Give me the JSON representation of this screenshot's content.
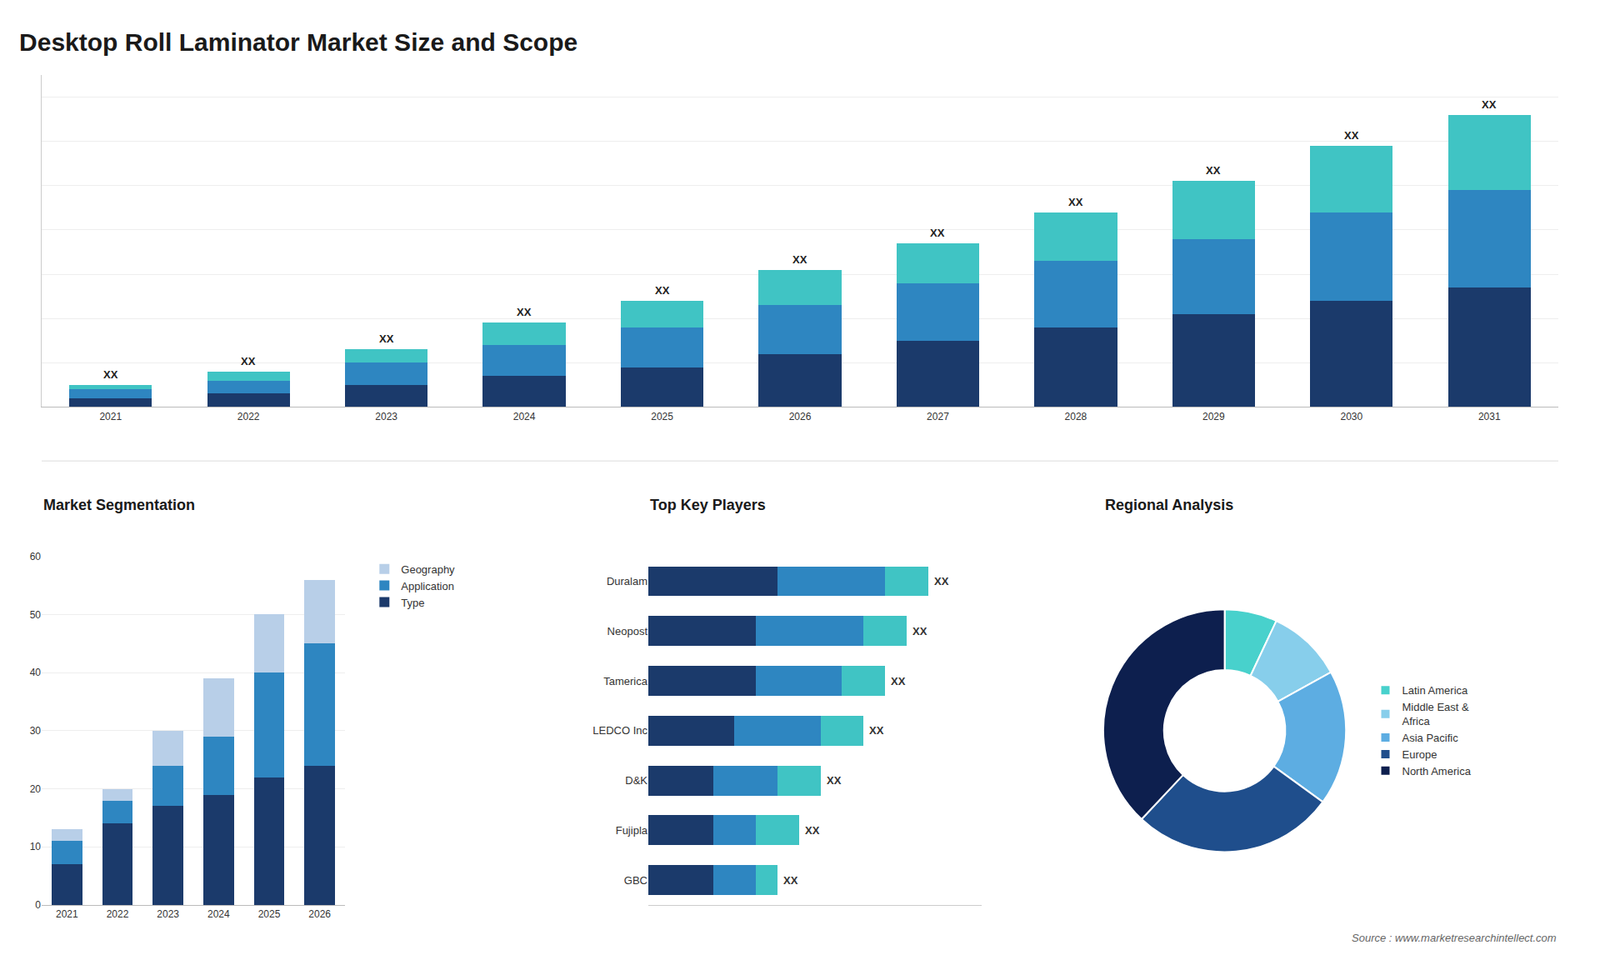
{
  "chart_data": [
    {
      "type": "bar",
      "title": "Desktop Roll Laminator Market Size and Scope",
      "stacked": true,
      "categories": [
        "2021",
        "2022",
        "2023",
        "2024",
        "2025",
        "2026",
        "2027",
        "2028",
        "2029",
        "2030",
        "2031"
      ],
      "series": [
        {
          "color": "#1b3a6b",
          "values": [
            2,
            3,
            5,
            7,
            9,
            12,
            15,
            18,
            21,
            24,
            27
          ]
        },
        {
          "color": "#2e86c1",
          "values": [
            2,
            3,
            5,
            7,
            9,
            11,
            13,
            15,
            17,
            20,
            22
          ]
        },
        {
          "color": "#40c4c4",
          "values": [
            1,
            2,
            3,
            5,
            6,
            8,
            9,
            11,
            13,
            15,
            17
          ]
        }
      ],
      "ylim": [
        0,
        75
      ],
      "yticks": [
        0,
        10,
        20,
        30,
        40,
        50,
        60,
        70
      ],
      "grid": true,
      "tick_labels": "x",
      "annotations": [
        {
          "x": 0,
          "text": "XX"
        },
        {
          "x": 1,
          "text": "XX"
        },
        {
          "x": 2,
          "text": "XX"
        },
        {
          "x": 3,
          "text": "XX"
        },
        {
          "x": 4,
          "text": "XX"
        },
        {
          "x": 5,
          "text": "XX"
        },
        {
          "x": 6,
          "text": "XX"
        },
        {
          "x": 7,
          "text": "XX"
        },
        {
          "x": 8,
          "text": "XX"
        },
        {
          "x": 9,
          "text": "XX"
        },
        {
          "x": 10,
          "text": "XX"
        }
      ]
    },
    {
      "type": "bar",
      "title": "Market Segmentation",
      "stacked": true,
      "categories": [
        "2021",
        "2022",
        "2023",
        "2024",
        "2025",
        "2026"
      ],
      "series": [
        {
          "name": "Type",
          "color": "#1b3a6b",
          "values": [
            7,
            14,
            17,
            19,
            22,
            24
          ]
        },
        {
          "name": "Application",
          "color": "#2e86c1",
          "values": [
            4,
            4,
            7,
            10,
            18,
            21
          ]
        },
        {
          "name": "Geography",
          "color": "#b8cfe8",
          "values": [
            2,
            2,
            6,
            10,
            10,
            11
          ]
        }
      ],
      "ylim": [
        0,
        60
      ],
      "yticks": [
        0,
        10,
        20,
        30,
        40,
        50,
        60
      ],
      "grid": true,
      "legend": "right"
    },
    {
      "type": "bar",
      "title": "Top Key Players",
      "stacked": true,
      "orientation": "horizontal",
      "categories": [
        "Duralam",
        "Neopost",
        "Tamerica",
        "LEDCO Inc",
        "D&K",
        "Fujipla",
        "GBC"
      ],
      "series": [
        {
          "color": "#1b3a6b",
          "values": [
            6,
            5,
            5,
            4,
            3,
            3,
            3
          ]
        },
        {
          "color": "#2e86c1",
          "values": [
            5,
            5,
            4,
            4,
            3,
            2,
            2
          ]
        },
        {
          "color": "#40c4c4",
          "values": [
            2,
            2,
            2,
            2,
            2,
            2,
            1
          ]
        }
      ],
      "xlim": [
        0,
        15.5
      ],
      "xticks": [],
      "grid": false,
      "tick_labels": "y",
      "annotations": [
        {
          "y": 0,
          "text": "XX"
        },
        {
          "y": 1,
          "text": "XX"
        },
        {
          "y": 2,
          "text": "XX"
        },
        {
          "y": 3,
          "text": "XX"
        },
        {
          "y": 4,
          "text": "XX"
        },
        {
          "y": 5,
          "text": "XX"
        },
        {
          "y": 6,
          "text": "XX"
        }
      ]
    },
    {
      "type": "donut",
      "title": "Regional Analysis",
      "categories": [
        "Latin America",
        "Middle East &\nAfrica",
        "Asia Pacific",
        "Europe",
        "North America"
      ],
      "values": [
        7,
        10,
        18,
        27,
        38
      ],
      "colors": [
        "#48d1cc",
        "#87ceeb",
        "#5dade2",
        "#1f4e8c",
        "#0d1f4e"
      ],
      "legend": "right",
      "annotations": [
        {
          "text": "Source : www.marketresearchintellect.com"
        }
      ]
    }
  ]
}
